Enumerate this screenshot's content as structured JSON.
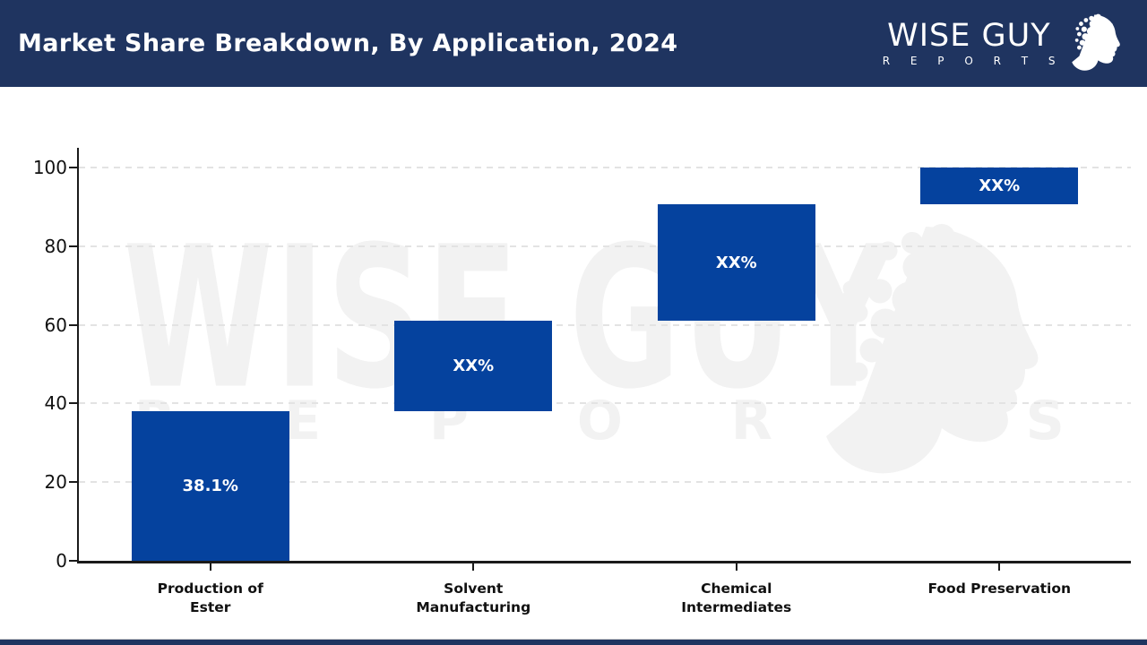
{
  "header": {
    "title": "Market Share Breakdown, By Application, 2024",
    "bg_color": "#1f3460",
    "logo": {
      "line1": "WISE GUY",
      "line2": "R E P O R T S"
    }
  },
  "watermark": {
    "line1": "WISE GUY",
    "line2": "R E P O R T S"
  },
  "chart_data": {
    "type": "bar",
    "subtype": "waterfall",
    "title": "Market Share Breakdown, By Application, 2024",
    "xlabel": "",
    "ylabel": "",
    "categories": [
      "Production of\nEster",
      "Solvent\nManufacturing",
      "Chemical\nIntermediates",
      "Food Preservation"
    ],
    "segments": [
      {
        "category": "Production of Ester",
        "start": 0,
        "end": 38.1,
        "label": "38.1%"
      },
      {
        "category": "Solvent Manufacturing",
        "start": 38.1,
        "end": 61.0,
        "label": "XX%"
      },
      {
        "category": "Chemical Intermediates",
        "start": 61.0,
        "end": 90.6,
        "label": "XX%"
      },
      {
        "category": "Food Preservation",
        "start": 90.6,
        "end": 100,
        "label": "XX%"
      }
    ],
    "yticks": [
      0,
      20,
      40,
      60,
      80,
      100
    ],
    "ylim": [
      0,
      105
    ],
    "grid": true,
    "legend": false,
    "bar_color": "#05429e",
    "label_color": "#ffffff",
    "gridline_color": "#e3e3e3",
    "bar_width_ratio": 0.15
  }
}
